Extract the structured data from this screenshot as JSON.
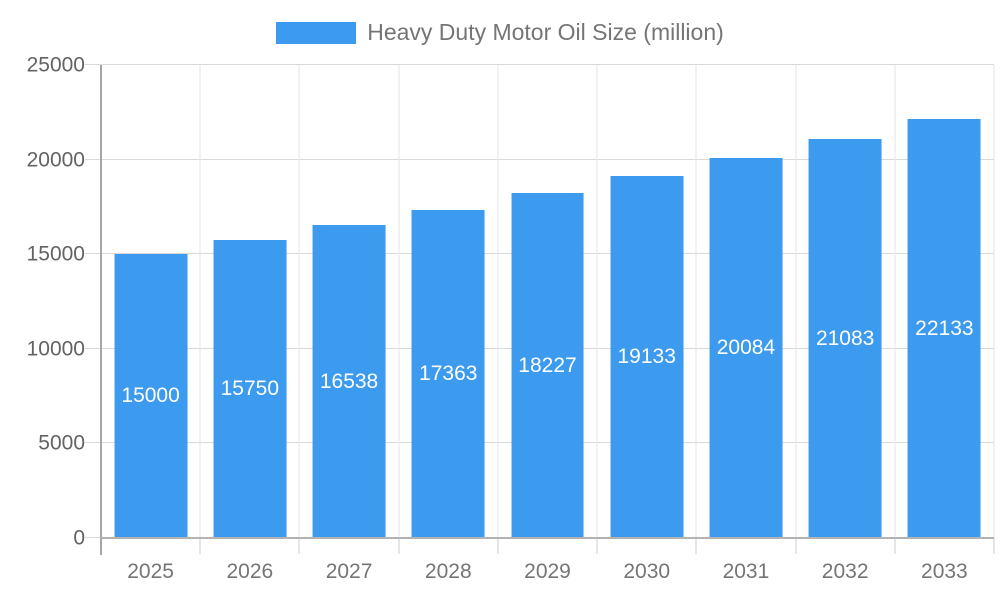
{
  "chart_data": {
    "type": "bar",
    "title": "Heavy Duty Motor Oil Size (million)",
    "categories": [
      "2025",
      "2026",
      "2027",
      "2028",
      "2029",
      "2030",
      "2031",
      "2032",
      "2033"
    ],
    "values": [
      15000,
      15750,
      16538,
      17363,
      18227,
      19133,
      20084,
      21083,
      22133
    ],
    "xlabel": "",
    "ylabel": "",
    "ylim": [
      0,
      25000
    ],
    "yticks": [
      0,
      5000,
      10000,
      15000,
      20000,
      25000
    ],
    "grid": true,
    "legend_position": "top-center",
    "value_labels": "inside-center",
    "colors": {
      "bar": "#3C9AEF",
      "bar_value_text": "#FFFFFF",
      "h_gridline": "#D9D9D9",
      "v_gridline": "#E6E6E6",
      "axis_line": "#A6A6A6",
      "baseline": "#B3B3B3",
      "tick": "#CCCCCC",
      "y_label_text": "#636363",
      "x_label_text": "#757575",
      "legend_text": "#757575"
    }
  }
}
